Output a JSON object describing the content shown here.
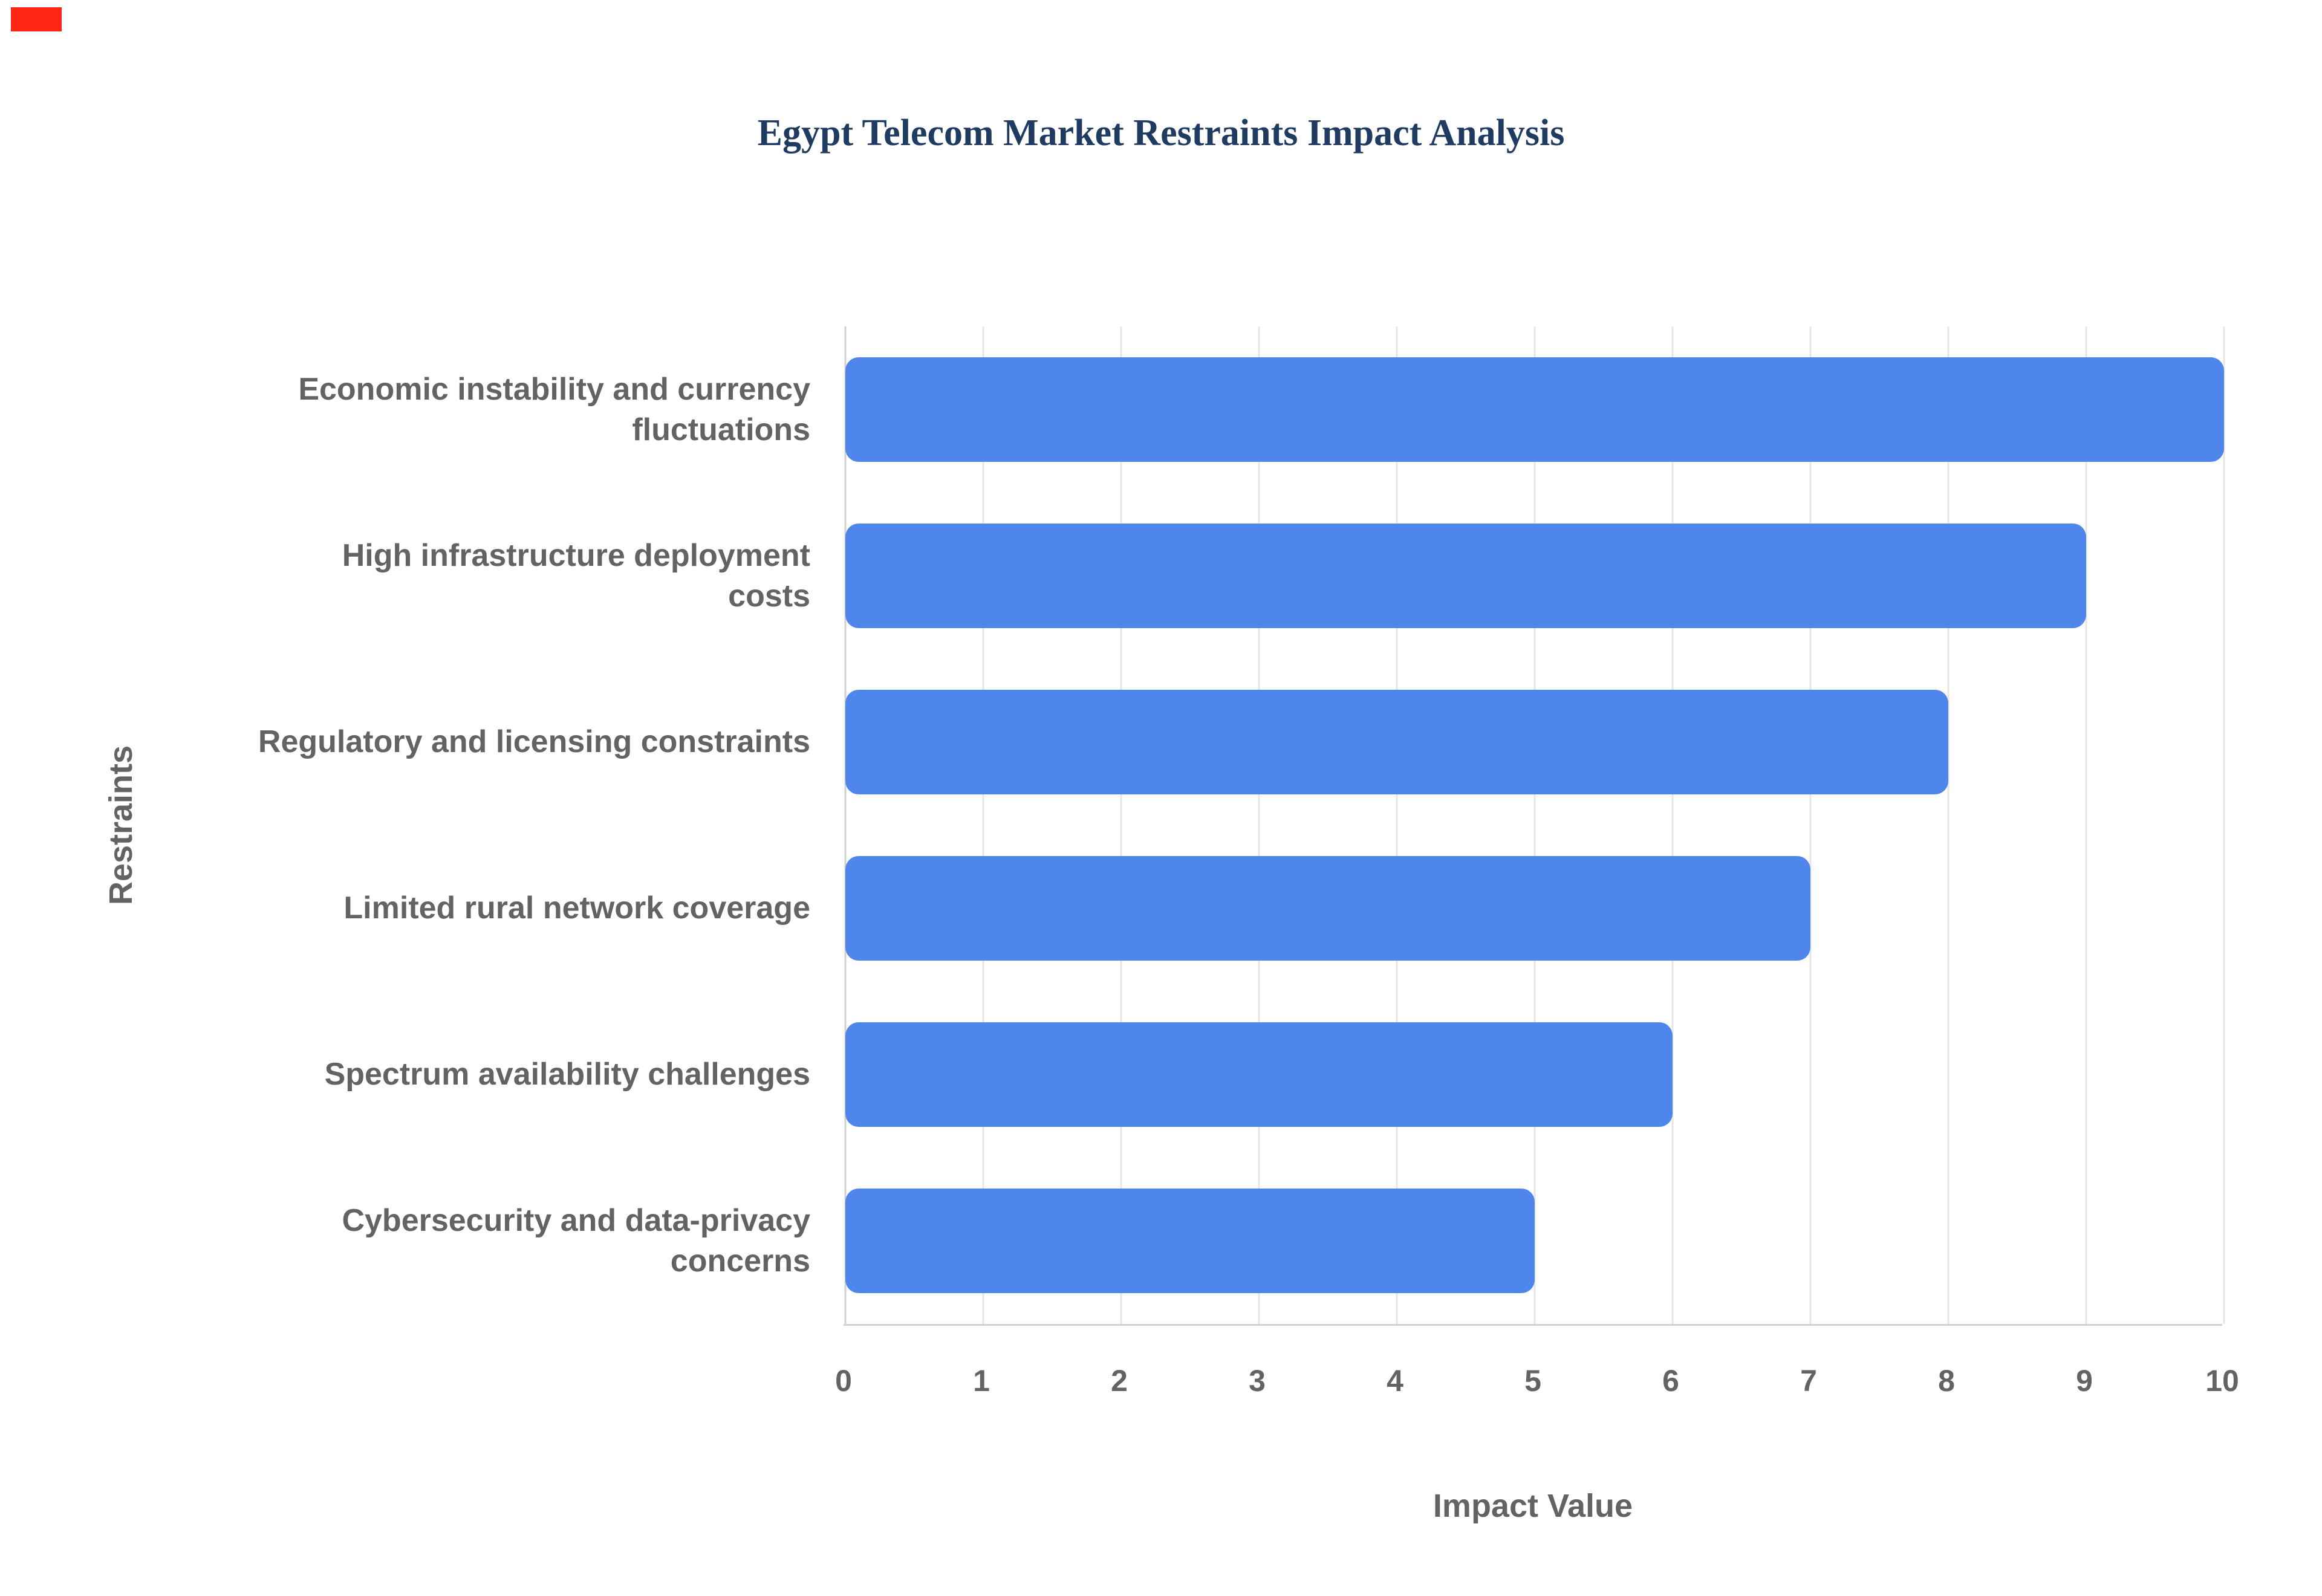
{
  "page": {
    "background": "#ffffff",
    "corner_marker_color": "#ff2616"
  },
  "chart_data": {
    "type": "bar",
    "orientation": "horizontal",
    "title": "Egypt Telecom Market Restraints Impact Analysis",
    "xlabel": "Impact Value",
    "ylabel": "Restraints",
    "categories": [
      "Economic instability and currency fluctuations",
      "High infrastructure deployment costs",
      "Regulatory and licensing constraints",
      "Limited rural network coverage",
      "Spectrum availability challenges",
      "Cybersecurity and data-privacy concerns"
    ],
    "values": [
      10,
      9,
      8,
      7,
      6,
      5
    ],
    "xlim": [
      0,
      10
    ],
    "xticks": [
      0,
      1,
      2,
      3,
      4,
      5,
      6,
      7,
      8,
      9,
      10
    ],
    "grid": true,
    "legend": "none",
    "colors": {
      "bar": "#4F86EC",
      "grid": "#e6e6e6",
      "axis_line": "#d0d0d0",
      "labels": "#636363",
      "title": "#1f3b62"
    }
  }
}
